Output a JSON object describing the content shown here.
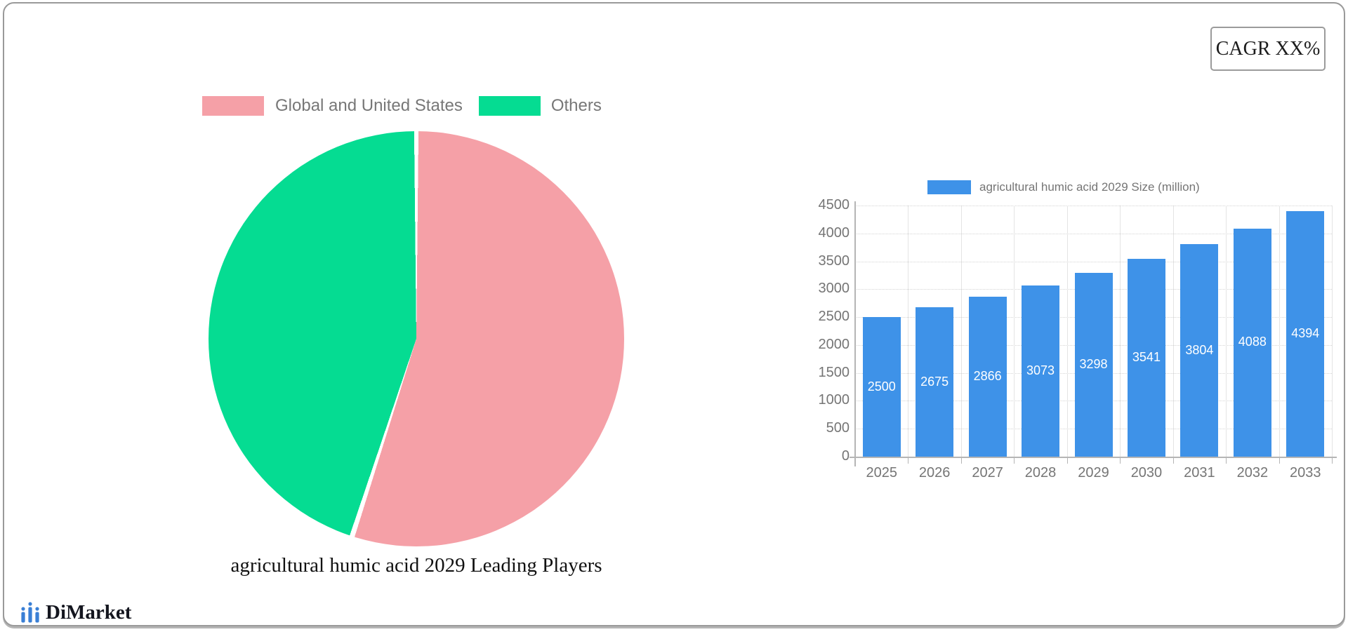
{
  "cagr": {
    "label": "CAGR XX%"
  },
  "logo": {
    "text": "DiMarket",
    "icon_color": "#3a7fd5"
  },
  "pie_section": {
    "caption": "agricultural humic acid 2029 Leading Players",
    "legend": [
      {
        "label": "Global and United States",
        "color": "#F5A0A7"
      },
      {
        "label": "Others",
        "color": "#05DC92"
      }
    ]
  },
  "bar_section": {
    "legend_label": "agricultural humic acid 2029 Size (million)",
    "bar_color": "#3E92E8"
  },
  "chart_data": [
    {
      "type": "pie",
      "title": "agricultural humic acid 2029 Leading Players",
      "labels": [
        "Global and United States",
        "Others"
      ],
      "values": [
        55,
        45
      ],
      "colors": [
        "#F5A0A7",
        "#05DC92"
      ],
      "legend_position": "top",
      "start_angle_deg": 0,
      "direction": "clockwise",
      "slice_border_color": "#ffffff"
    },
    {
      "type": "bar",
      "title": "",
      "legend": "agricultural humic acid 2029 Size (million)",
      "categories": [
        "2025",
        "2026",
        "2027",
        "2028",
        "2029",
        "2030",
        "2031",
        "2032",
        "2033"
      ],
      "values": [
        2500,
        2675,
        2866,
        3073,
        3298,
        3541,
        3804,
        4088,
        4394
      ],
      "xlabel": "",
      "ylabel": "",
      "ylim": [
        0,
        4500
      ],
      "y_ticks": [
        0,
        500,
        1000,
        1500,
        2000,
        2500,
        3000,
        3500,
        4000,
        4500
      ],
      "bar_color": "#3E92E8",
      "grid": true,
      "value_labels": "centered-inside-white"
    }
  ]
}
